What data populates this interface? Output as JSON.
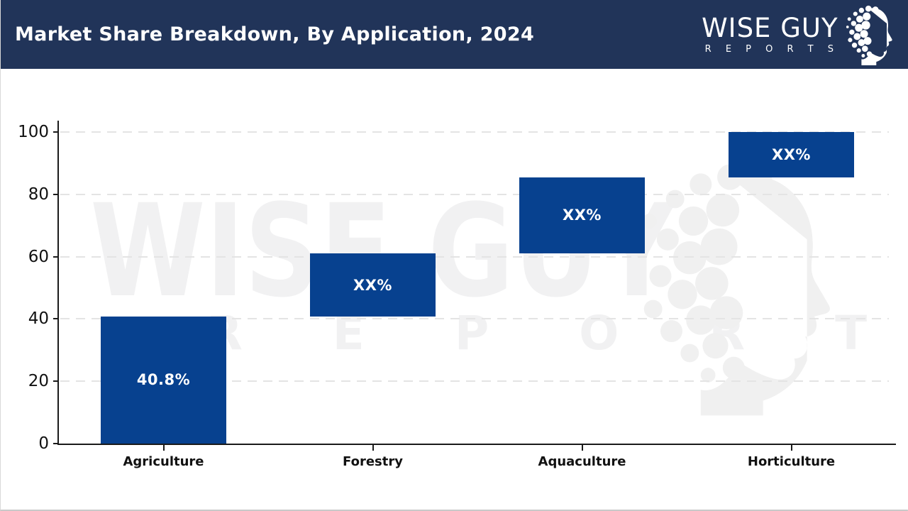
{
  "header": {
    "title": "Market Share Breakdown, By Application, 2024",
    "logo": {
      "line1": "WISE GUY",
      "line2": "R E P O R T S"
    }
  },
  "watermark": {
    "line1": "WISE GUY",
    "line2": "R E P O R T S"
  },
  "colors": {
    "header_bg": "#213459",
    "bar": "#07418f",
    "bar_label": "#ffffff",
    "axis": "#1a1a1a",
    "grid": "#e4e4e4",
    "watermark": "#f1f1f2",
    "tick_label": "#111111"
  },
  "chart_data": {
    "type": "bar",
    "variant": "waterfall",
    "title": "Market Share Breakdown, By Application, 2024",
    "categories": [
      "Agriculture",
      "Forestry",
      "Aquaculture",
      "Horticulture"
    ],
    "segments": [
      {
        "category": "Agriculture",
        "start": 0,
        "end": 40.8,
        "value": 40.8,
        "label": "40.8%"
      },
      {
        "category": "Forestry",
        "start": 40.8,
        "end": 61.0,
        "value": 20.2,
        "label": "XX%"
      },
      {
        "category": "Aquaculture",
        "start": 61.0,
        "end": 85.5,
        "value": 24.5,
        "label": "XX%"
      },
      {
        "category": "Horticulture",
        "start": 85.5,
        "end": 100.0,
        "value": 14.5,
        "label": "XX%"
      }
    ],
    "xlabel": "",
    "ylabel": "",
    "ylim": [
      0,
      100
    ],
    "yticks": [
      0,
      20,
      40,
      60,
      80,
      100
    ],
    "grid": "horizontal-dashed",
    "legend": "none",
    "bar_color": "#07418f",
    "label_color": "#ffffff"
  }
}
